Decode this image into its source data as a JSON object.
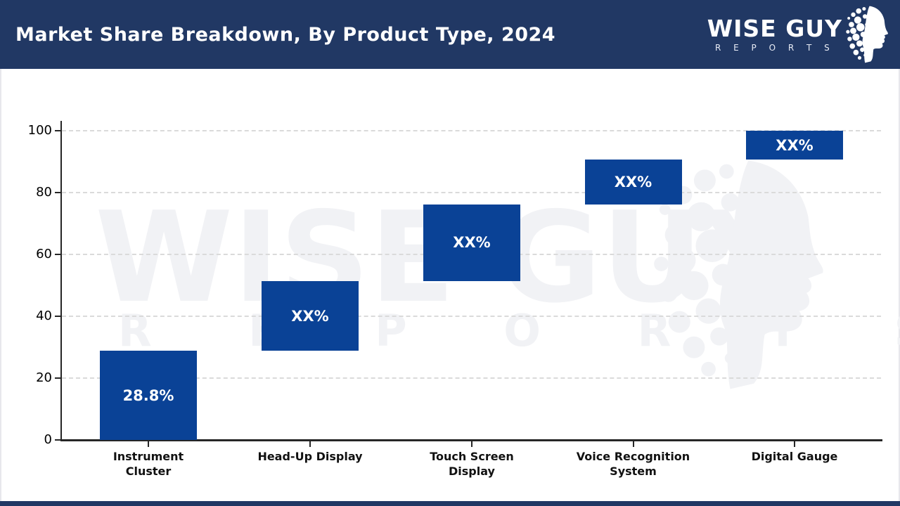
{
  "header": {
    "title": "Market Share Breakdown, By Product Type, 2024",
    "logo": {
      "name": "WISE GUY",
      "subtext": "R E P O R T S"
    }
  },
  "watermark": {
    "line1": "WISE GUY",
    "line2": "R E P O R T S"
  },
  "chart_data": {
    "type": "bar",
    "subtype": "waterfall-cumulative",
    "title": "Market Share Breakdown, By Product Type, 2024",
    "categories": [
      "Instrument Cluster",
      "Head-Up Display",
      "Touch Screen Display",
      "Voice Recognition System",
      "Digital Gauge"
    ],
    "category_lines": [
      [
        "Instrument Cluster"
      ],
      [
        "Head-Up Display"
      ],
      [
        "Touch Screen",
        "Display"
      ],
      [
        "Voice Recognition",
        "System"
      ],
      [
        "Digital Gauge"
      ]
    ],
    "bars": [
      {
        "category": "Instrument Cluster",
        "start": 0,
        "end": 28.8,
        "label": "28.8%"
      },
      {
        "category": "Head-Up Display",
        "start": 28.8,
        "end": 51.4,
        "label": "XX%"
      },
      {
        "category": "Touch Screen Display",
        "start": 51.4,
        "end": 76.2,
        "label": "XX%"
      },
      {
        "category": "Voice Recognition System",
        "start": 76.2,
        "end": 90.6,
        "label": "XX%"
      },
      {
        "category": "Digital Gauge",
        "start": 90.6,
        "end": 100,
        "label": "XX%"
      }
    ],
    "ylim": [
      0,
      100
    ],
    "yticks": [
      0,
      20,
      40,
      60,
      80,
      100
    ],
    "grid": "horizontal-dashed",
    "legend": "none",
    "bar_color": "#0a4296"
  },
  "colors": {
    "header_bg": "#213864",
    "footer_bg": "#213864",
    "bar": "#0a4296",
    "grid": "#dadada",
    "axis": "#262626",
    "watermark": "#f1f2f5"
  }
}
